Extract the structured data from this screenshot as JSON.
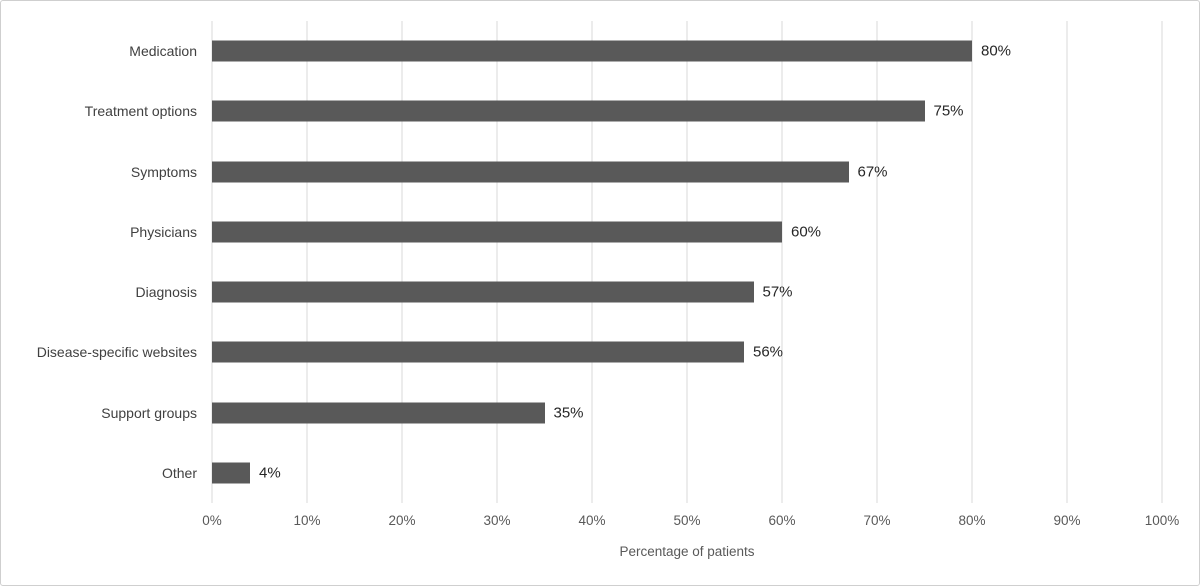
{
  "chart_data": {
    "type": "bar",
    "orientation": "horizontal",
    "title": "",
    "categories": [
      "Medication",
      "Treatment options",
      "Symptoms",
      "Physicians",
      "Diagnosis",
      "Disease-specific websites",
      "Support groups",
      "Other"
    ],
    "values": [
      80,
      75,
      67,
      60,
      57,
      56,
      35,
      4
    ],
    "value_labels": [
      "80%",
      "75%",
      "67%",
      "60%",
      "57%",
      "56%",
      "35%",
      "4%"
    ],
    "x_ticks": [
      "0%",
      "10%",
      "20%",
      "30%",
      "40%",
      "50%",
      "60%",
      "70%",
      "80%",
      "90%",
      "100%"
    ],
    "x_tick_values": [
      0,
      10,
      20,
      30,
      40,
      50,
      60,
      70,
      80,
      90,
      100
    ],
    "xlim": [
      0,
      100
    ],
    "xlabel": "Percentage of patients",
    "ylabel": "",
    "grid": "vertical",
    "legend": "none",
    "colors": {
      "bar_fill": "#595959",
      "gridline": "#d9d9d9",
      "category_text": "#404040",
      "value_text": "#262626",
      "tick_text": "#595959",
      "axis_title_text": "#595959",
      "background": "#ffffff",
      "frame_border": "#cfcfcf"
    }
  }
}
